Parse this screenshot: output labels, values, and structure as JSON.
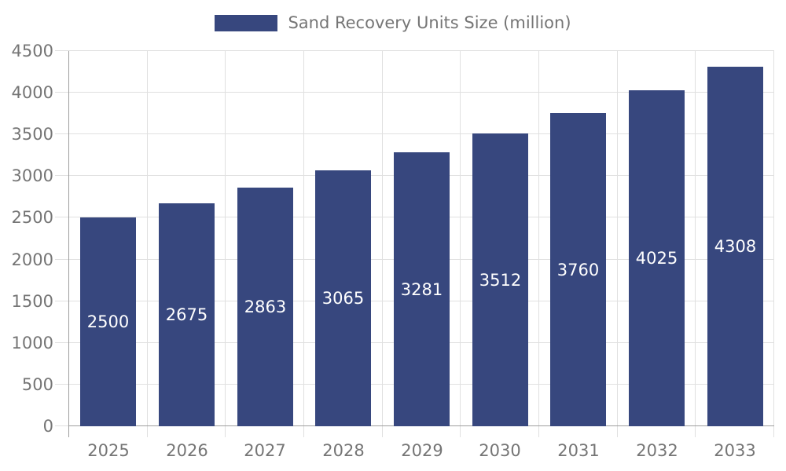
{
  "legend": {
    "label": "Sand Recovery Units Size (million)",
    "swatch_color": "#37477E"
  },
  "chart_data": {
    "type": "bar",
    "title": "Sand Recovery Units Size (million)",
    "categories": [
      "2025",
      "2026",
      "2027",
      "2028",
      "2029",
      "2030",
      "2031",
      "2032",
      "2033"
    ],
    "values": [
      2500,
      2675,
      2863,
      3065,
      3281,
      3512,
      3760,
      4025,
      4308
    ],
    "series": [
      {
        "name": "Sand Recovery Units Size (million)",
        "values": [
          2500,
          2675,
          2863,
          3065,
          3281,
          3512,
          3760,
          4025,
          4308
        ]
      }
    ],
    "xlabel": "",
    "ylabel": "",
    "ylim": [
      0,
      4500
    ],
    "ytick_step": 500,
    "yticks": [
      0,
      500,
      1000,
      1500,
      2000,
      2500,
      3000,
      3500,
      4000,
      4500
    ],
    "grid": true,
    "legend_position": "top",
    "value_labels": "inside-center",
    "colors": {
      "bar": "#37477E",
      "value_label": "#ffffff",
      "axis_text": "#757575",
      "grid_line": "#e0e0e0",
      "axis_line": "#9e9e9e",
      "background": "#ffffff"
    }
  }
}
